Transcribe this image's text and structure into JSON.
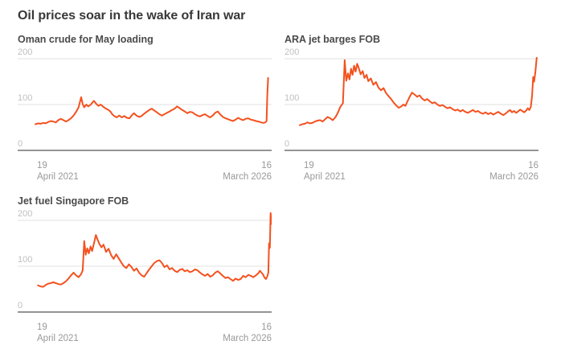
{
  "page": {
    "title": "Oil prices soar in the wake of Iran war"
  },
  "colors": {
    "line": "#f4511e",
    "gridline": "#e0e0e0",
    "axis_line": "#949494",
    "title_text": "#383838",
    "chart_title_text": "#4a4a4a",
    "ytick_text": "#bfbfbf",
    "xlabel_text": "#999999",
    "background": "#ffffff"
  },
  "chart_data": [
    {
      "type": "line",
      "title": "Oman crude for May loading",
      "yticks": [
        "200",
        "100",
        "0"
      ],
      "ylim": [
        0,
        230
      ],
      "grid": "horizontal-only",
      "legend": "none",
      "x_start": {
        "day": "19",
        "date": "April 2021"
      },
      "x_end": {
        "day": "16",
        "date": "March 2026"
      },
      "points": [
        [
          0.07,
          57
        ],
        [
          0.08,
          59
        ],
        [
          0.09,
          58
        ],
        [
          0.1,
          60
        ],
        [
          0.11,
          59
        ],
        [
          0.12,
          62
        ],
        [
          0.13,
          64
        ],
        [
          0.14,
          63
        ],
        [
          0.15,
          61
        ],
        [
          0.16,
          66
        ],
        [
          0.17,
          69
        ],
        [
          0.18,
          66
        ],
        [
          0.19,
          63
        ],
        [
          0.2,
          66
        ],
        [
          0.21,
          70
        ],
        [
          0.22,
          76
        ],
        [
          0.23,
          84
        ],
        [
          0.24,
          94
        ],
        [
          0.25,
          116
        ],
        [
          0.256,
          101
        ],
        [
          0.262,
          94
        ],
        [
          0.27,
          100
        ],
        [
          0.278,
          96
        ],
        [
          0.288,
          100
        ],
        [
          0.3,
          108
        ],
        [
          0.31,
          101
        ],
        [
          0.318,
          97
        ],
        [
          0.327,
          100
        ],
        [
          0.335,
          96
        ],
        [
          0.345,
          92
        ],
        [
          0.355,
          89
        ],
        [
          0.365,
          85
        ],
        [
          0.372,
          79
        ],
        [
          0.38,
          75
        ],
        [
          0.39,
          72
        ],
        [
          0.4,
          76
        ],
        [
          0.41,
          72
        ],
        [
          0.42,
          75
        ],
        [
          0.43,
          71
        ],
        [
          0.44,
          70
        ],
        [
          0.45,
          77
        ],
        [
          0.458,
          81
        ],
        [
          0.468,
          76
        ],
        [
          0.478,
          73
        ],
        [
          0.488,
          75
        ],
        [
          0.498,
          80
        ],
        [
          0.508,
          84
        ],
        [
          0.518,
          88
        ],
        [
          0.528,
          91
        ],
        [
          0.538,
          87
        ],
        [
          0.548,
          83
        ],
        [
          0.558,
          79
        ],
        [
          0.568,
          76
        ],
        [
          0.578,
          79
        ],
        [
          0.588,
          82
        ],
        [
          0.598,
          85
        ],
        [
          0.608,
          88
        ],
        [
          0.618,
          91
        ],
        [
          0.628,
          96
        ],
        [
          0.638,
          92
        ],
        [
          0.648,
          88
        ],
        [
          0.658,
          85
        ],
        [
          0.668,
          81
        ],
        [
          0.678,
          84
        ],
        [
          0.688,
          83
        ],
        [
          0.698,
          79
        ],
        [
          0.708,
          76
        ],
        [
          0.718,
          74
        ],
        [
          0.728,
          77
        ],
        [
          0.738,
          79
        ],
        [
          0.748,
          75
        ],
        [
          0.758,
          72
        ],
        [
          0.768,
          76
        ],
        [
          0.778,
          82
        ],
        [
          0.788,
          85
        ],
        [
          0.798,
          78
        ],
        [
          0.808,
          73
        ],
        [
          0.818,
          70
        ],
        [
          0.828,
          68
        ],
        [
          0.838,
          66
        ],
        [
          0.848,
          64
        ],
        [
          0.858,
          67
        ],
        [
          0.868,
          71
        ],
        [
          0.878,
          68
        ],
        [
          0.888,
          66
        ],
        [
          0.898,
          69
        ],
        [
          0.908,
          70
        ],
        [
          0.918,
          67
        ],
        [
          0.928,
          66
        ],
        [
          0.938,
          64
        ],
        [
          0.948,
          63
        ],
        [
          0.958,
          61
        ],
        [
          0.968,
          60
        ],
        [
          0.975,
          61
        ],
        [
          0.98,
          64
        ],
        [
          0.983,
          120
        ],
        [
          0.986,
          158
        ]
      ]
    },
    {
      "type": "line",
      "title": "ARA jet barges FOB",
      "yticks": [
        "200",
        "100",
        "0"
      ],
      "ylim": [
        0,
        230
      ],
      "grid": "horizontal-only",
      "legend": "none",
      "x_start": {
        "day": "19",
        "date": "April 2021"
      },
      "x_end": {
        "day": "16",
        "date": "March 2026"
      },
      "points": [
        [
          0.06,
          55
        ],
        [
          0.07,
          57
        ],
        [
          0.08,
          58
        ],
        [
          0.09,
          61
        ],
        [
          0.1,
          59
        ],
        [
          0.11,
          60
        ],
        [
          0.12,
          63
        ],
        [
          0.13,
          65
        ],
        [
          0.14,
          66
        ],
        [
          0.15,
          63
        ],
        [
          0.16,
          68
        ],
        [
          0.17,
          73
        ],
        [
          0.18,
          70
        ],
        [
          0.19,
          66
        ],
        [
          0.2,
          72
        ],
        [
          0.21,
          82
        ],
        [
          0.22,
          95
        ],
        [
          0.23,
          103
        ],
        [
          0.237,
          197
        ],
        [
          0.243,
          152
        ],
        [
          0.25,
          168
        ],
        [
          0.256,
          155
        ],
        [
          0.262,
          178
        ],
        [
          0.268,
          165
        ],
        [
          0.274,
          185
        ],
        [
          0.28,
          172
        ],
        [
          0.286,
          189
        ],
        [
          0.292,
          180
        ],
        [
          0.3,
          166
        ],
        [
          0.308,
          173
        ],
        [
          0.315,
          158
        ],
        [
          0.323,
          165
        ],
        [
          0.33,
          151
        ],
        [
          0.34,
          157
        ],
        [
          0.35,
          143
        ],
        [
          0.36,
          149
        ],
        [
          0.37,
          137
        ],
        [
          0.38,
          131
        ],
        [
          0.39,
          136
        ],
        [
          0.4,
          125
        ],
        [
          0.41,
          118
        ],
        [
          0.42,
          112
        ],
        [
          0.43,
          104
        ],
        [
          0.44,
          98
        ],
        [
          0.45,
          93
        ],
        [
          0.46,
          96
        ],
        [
          0.468,
          100
        ],
        [
          0.476,
          97
        ],
        [
          0.485,
          108
        ],
        [
          0.494,
          118
        ],
        [
          0.502,
          126
        ],
        [
          0.512,
          122
        ],
        [
          0.522,
          117
        ],
        [
          0.532,
          120
        ],
        [
          0.542,
          113
        ],
        [
          0.552,
          109
        ],
        [
          0.562,
          112
        ],
        [
          0.572,
          107
        ],
        [
          0.582,
          103
        ],
        [
          0.592,
          105
        ],
        [
          0.602,
          100
        ],
        [
          0.612,
          97
        ],
        [
          0.622,
          99
        ],
        [
          0.632,
          95
        ],
        [
          0.642,
          92
        ],
        [
          0.652,
          94
        ],
        [
          0.662,
          90
        ],
        [
          0.672,
          87
        ],
        [
          0.682,
          89
        ],
        [
          0.692,
          85
        ],
        [
          0.702,
          88
        ],
        [
          0.712,
          84
        ],
        [
          0.722,
          82
        ],
        [
          0.732,
          85
        ],
        [
          0.742,
          88
        ],
        [
          0.752,
          84
        ],
        [
          0.762,
          86
        ],
        [
          0.772,
          82
        ],
        [
          0.782,
          80
        ],
        [
          0.792,
          83
        ],
        [
          0.802,
          79
        ],
        [
          0.812,
          82
        ],
        [
          0.822,
          78
        ],
        [
          0.832,
          81
        ],
        [
          0.842,
          84
        ],
        [
          0.852,
          80
        ],
        [
          0.862,
          77
        ],
        [
          0.872,
          81
        ],
        [
          0.88,
          85
        ],
        [
          0.888,
          88
        ],
        [
          0.896,
          83
        ],
        [
          0.904,
          86
        ],
        [
          0.912,
          82
        ],
        [
          0.92,
          85
        ],
        [
          0.928,
          89
        ],
        [
          0.936,
          86
        ],
        [
          0.944,
          83
        ],
        [
          0.952,
          87
        ],
        [
          0.958,
          92
        ],
        [
          0.964,
          88
        ],
        [
          0.97,
          95
        ],
        [
          0.975,
          120
        ],
        [
          0.979,
          160
        ],
        [
          0.983,
          150
        ],
        [
          0.988,
          172
        ],
        [
          0.993,
          202
        ]
      ]
    },
    {
      "type": "line",
      "title": "Jet fuel Singapore FOB",
      "yticks": [
        "200",
        "100",
        "0"
      ],
      "ylim": [
        0,
        230
      ],
      "grid": "horizontal-only",
      "legend": "none",
      "x_start": {
        "day": "19",
        "date": "April 2021"
      },
      "x_end": {
        "day": "16",
        "date": "March 2026"
      },
      "points": [
        [
          0.08,
          58
        ],
        [
          0.09,
          56
        ],
        [
          0.1,
          55
        ],
        [
          0.11,
          59
        ],
        [
          0.12,
          62
        ],
        [
          0.13,
          63
        ],
        [
          0.14,
          65
        ],
        [
          0.15,
          63
        ],
        [
          0.16,
          61
        ],
        [
          0.17,
          60
        ],
        [
          0.18,
          63
        ],
        [
          0.19,
          67
        ],
        [
          0.2,
          73
        ],
        [
          0.21,
          80
        ],
        [
          0.22,
          86
        ],
        [
          0.23,
          80
        ],
        [
          0.24,
          76
        ],
        [
          0.25,
          83
        ],
        [
          0.256,
          91
        ],
        [
          0.262,
          155
        ],
        [
          0.268,
          125
        ],
        [
          0.274,
          139
        ],
        [
          0.28,
          128
        ],
        [
          0.287,
          143
        ],
        [
          0.293,
          133
        ],
        [
          0.3,
          149
        ],
        [
          0.308,
          168
        ],
        [
          0.314,
          159
        ],
        [
          0.322,
          148
        ],
        [
          0.33,
          141
        ],
        [
          0.338,
          147
        ],
        [
          0.348,
          131
        ],
        [
          0.358,
          138
        ],
        [
          0.368,
          124
        ],
        [
          0.378,
          116
        ],
        [
          0.388,
          126
        ],
        [
          0.398,
          117
        ],
        [
          0.408,
          108
        ],
        [
          0.418,
          100
        ],
        [
          0.428,
          96
        ],
        [
          0.438,
          104
        ],
        [
          0.448,
          98
        ],
        [
          0.458,
          90
        ],
        [
          0.468,
          95
        ],
        [
          0.478,
          86
        ],
        [
          0.488,
          80
        ],
        [
          0.498,
          77
        ],
        [
          0.508,
          85
        ],
        [
          0.518,
          93
        ],
        [
          0.528,
          100
        ],
        [
          0.538,
          107
        ],
        [
          0.548,
          111
        ],
        [
          0.558,
          113
        ],
        [
          0.568,
          107
        ],
        [
          0.578,
          98
        ],
        [
          0.588,
          102
        ],
        [
          0.598,
          93
        ],
        [
          0.608,
          96
        ],
        [
          0.618,
          90
        ],
        [
          0.628,
          87
        ],
        [
          0.638,
          92
        ],
        [
          0.648,
          94
        ],
        [
          0.658,
          89
        ],
        [
          0.668,
          91
        ],
        [
          0.678,
          87
        ],
        [
          0.688,
          89
        ],
        [
          0.698,
          93
        ],
        [
          0.708,
          91
        ],
        [
          0.718,
          86
        ],
        [
          0.728,
          82
        ],
        [
          0.738,
          79
        ],
        [
          0.748,
          83
        ],
        [
          0.758,
          77
        ],
        [
          0.768,
          80
        ],
        [
          0.778,
          86
        ],
        [
          0.788,
          89
        ],
        [
          0.798,
          84
        ],
        [
          0.808,
          79
        ],
        [
          0.818,
          74
        ],
        [
          0.828,
          76
        ],
        [
          0.838,
          72
        ],
        [
          0.848,
          68
        ],
        [
          0.858,
          73
        ],
        [
          0.868,
          70
        ],
        [
          0.878,
          72
        ],
        [
          0.888,
          79
        ],
        [
          0.898,
          76
        ],
        [
          0.908,
          81
        ],
        [
          0.918,
          79
        ],
        [
          0.928,
          76
        ],
        [
          0.938,
          80
        ],
        [
          0.948,
          85
        ],
        [
          0.954,
          90
        ],
        [
          0.96,
          86
        ],
        [
          0.966,
          82
        ],
        [
          0.972,
          75
        ],
        [
          0.978,
          72
        ],
        [
          0.983,
          78
        ],
        [
          0.987,
          86
        ],
        [
          0.99,
          150
        ],
        [
          0.993,
          140
        ],
        [
          0.996,
          216
        ],
        [
          1.0,
          192
        ]
      ]
    }
  ]
}
